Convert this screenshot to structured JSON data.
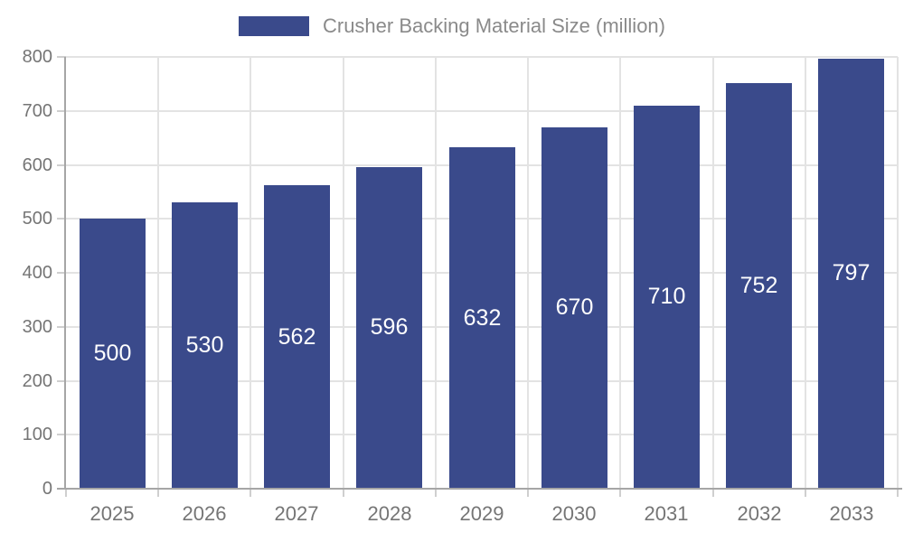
{
  "chart_data": {
    "type": "bar",
    "title": "Crusher Backing Material Size (million)",
    "categories": [
      "2025",
      "2026",
      "2027",
      "2028",
      "2029",
      "2030",
      "2031",
      "2032",
      "2033"
    ],
    "values": [
      500,
      530,
      562,
      596,
      632,
      670,
      710,
      752,
      797
    ],
    "xlabel": "",
    "ylabel": "",
    "ylim": [
      0,
      800
    ],
    "ytick_step": 100,
    "ytick_labels": [
      "0",
      "100",
      "200",
      "300",
      "400",
      "500",
      "600",
      "700",
      "800"
    ],
    "grid": true,
    "legend_position": "top-center",
    "bar_labels_inside": true,
    "colors": {
      "bar": "#3a4a8b",
      "bar_label": "#ffffff",
      "axis_label": "#757575",
      "legend_text": "#8a8a8a",
      "axis_line": "#a6a6a6",
      "gridline": "#e3e3e3",
      "tick": "#cfcfcf",
      "background": "#ffffff"
    }
  }
}
